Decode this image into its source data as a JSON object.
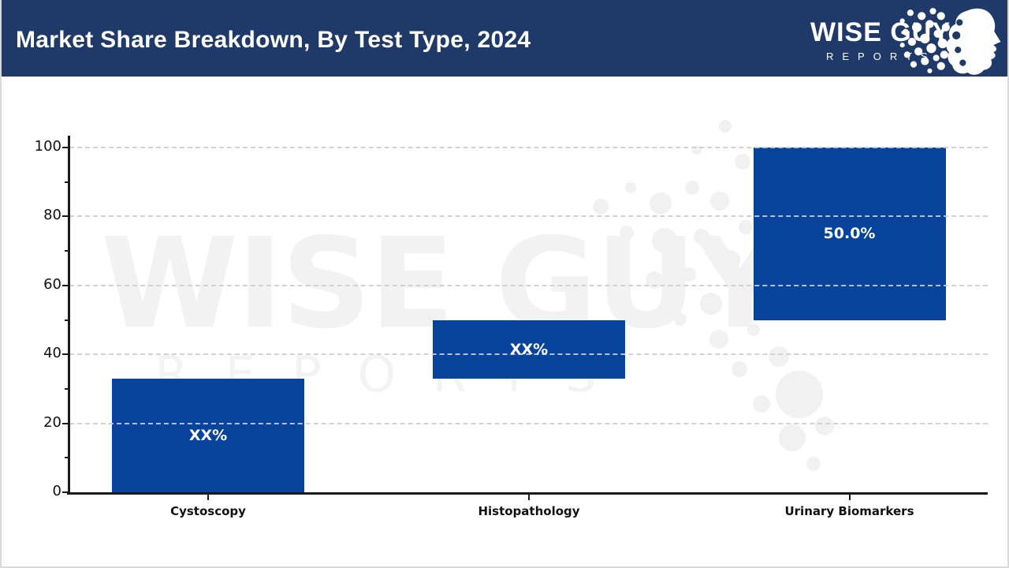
{
  "header": {
    "title": "Market Share Breakdown, By Test Type, 2024",
    "logo": {
      "line1": "WISE GUY",
      "line2": "REPORTS"
    }
  },
  "watermark": {
    "line1": "WISE GUY",
    "line2": "REPORTS"
  },
  "colors": {
    "header_bg": "#1f3a68",
    "bar": "#05439c",
    "axis": "#1a1a1a",
    "gridline": "#d8d8d8",
    "title_text": "#ffffff",
    "bar_label_text": "#ffffff",
    "watermark": "#f2f2f2"
  },
  "chart_data": {
    "type": "bar",
    "subtype": "floating-range-bars-waterfall-style",
    "title": "Market Share Breakdown, By Test Type, 2024",
    "categories": [
      "Cystoscopy",
      "Histopathology",
      "Urinary Biomarkers"
    ],
    "bars": [
      {
        "category": "Cystoscopy",
        "start": 0,
        "end": 33,
        "label": "XX%"
      },
      {
        "category": "Histopathology",
        "start": 33,
        "end": 50,
        "label": "XX%"
      },
      {
        "category": "Urinary Biomarkers",
        "start": 50,
        "end": 100,
        "label": "50.0%"
      }
    ],
    "xlabel": "",
    "ylabel": "",
    "ylim": [
      0,
      100
    ],
    "yticks": [
      0,
      20,
      40,
      60,
      80,
      100
    ],
    "yticks_minor": [
      10,
      30,
      50,
      70,
      90
    ],
    "grid": "horizontal-dashed",
    "legend": null,
    "note": "values of first two bars are masked as XX% in source; extents read from axis"
  }
}
